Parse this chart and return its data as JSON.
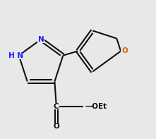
{
  "bg_color": "#e8e8e8",
  "bond_color": "#111111",
  "N_color": "#1a1aff",
  "O_color": "#cc6600",
  "lw": 1.5,
  "dbo": 0.09,
  "figsize": [
    2.21,
    1.97
  ],
  "dpi": 100,
  "xlim": [
    0.5,
    9.5
  ],
  "ylim": [
    1.2,
    7.8
  ],
  "fontsize": 7.5,
  "fontfamily": "DejaVu Sans"
}
